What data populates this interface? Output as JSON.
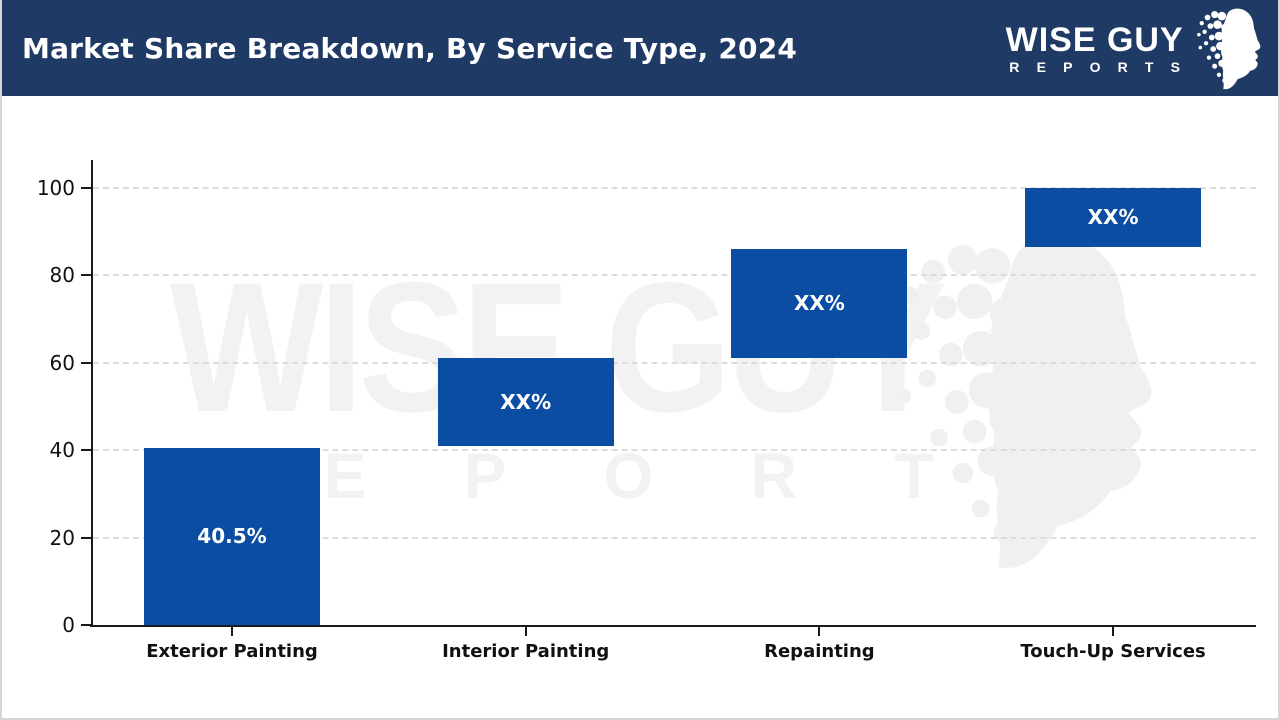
{
  "header": {
    "title": "Market Share Breakdown, By Service Type, 2024",
    "bg_color": "#203a66",
    "logo": {
      "line1": "WISE GUY",
      "line2": "REPORTS"
    }
  },
  "watermark": {
    "line1": "WISE GUY",
    "line2": "REPORTS"
  },
  "chart_data": {
    "type": "bar",
    "subtype": "waterfall-segments",
    "title": "Market Share Breakdown, By Service Type, 2024",
    "categories": [
      "Exterior Painting",
      "Interior Painting",
      "Repainting",
      "Touch-Up Services"
    ],
    "segments": [
      {
        "category": "Exterior Painting",
        "start": 0,
        "end": 40.5,
        "label": "40.5%"
      },
      {
        "category": "Interior Painting",
        "start": 41,
        "end": 61,
        "label": "XX%"
      },
      {
        "category": "Repainting",
        "start": 61,
        "end": 86,
        "label": "XX%"
      },
      {
        "category": "Touch-Up Services",
        "start": 86.5,
        "end": 100,
        "label": "XX%"
      }
    ],
    "unit": "percent",
    "ylim": [
      0,
      106
    ],
    "yticks": [
      0,
      20,
      40,
      60,
      80,
      100
    ],
    "grid": "horizontal-dashed",
    "grid_color": "#dcdcdc",
    "axis_color": "#1a1a1a",
    "bar_color": "#0b4da2",
    "bar_label_color": "#ffffff",
    "legend": "none"
  }
}
